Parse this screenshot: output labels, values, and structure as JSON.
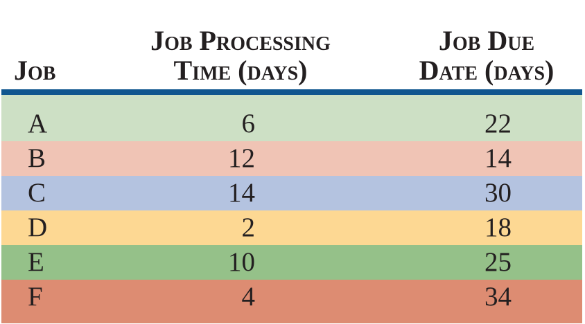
{
  "table": {
    "header": {
      "col_job": "Job",
      "col_processing_line1": "Job Processing",
      "col_processing_line2": "Time (days)",
      "col_due_line1": "Job Due",
      "col_due_line2": "Date (days)"
    },
    "rule_color": "#10568f",
    "text_color": "#231f20",
    "rows": [
      {
        "job": "A",
        "processing_time": "6",
        "due_date": "22",
        "color": "#cde0c5"
      },
      {
        "job": "B",
        "processing_time": "12",
        "due_date": "14",
        "color": "#f0c4b5"
      },
      {
        "job": "C",
        "processing_time": "14",
        "due_date": "30",
        "color": "#b4c3e0"
      },
      {
        "job": "D",
        "processing_time": "2",
        "due_date": "18",
        "color": "#fdd893"
      },
      {
        "job": "E",
        "processing_time": "10",
        "due_date": "25",
        "color": "#95c189"
      },
      {
        "job": "F",
        "processing_time": "4",
        "due_date": "34",
        "color": "#dd8c72"
      }
    ]
  },
  "chart_data": {
    "type": "table",
    "title": "",
    "columns": [
      "Job",
      "Job Processing Time (days)",
      "Job Due Date (days)"
    ],
    "rows": [
      [
        "A",
        6,
        22
      ],
      [
        "B",
        12,
        14
      ],
      [
        "C",
        14,
        30
      ],
      [
        "D",
        2,
        18
      ],
      [
        "E",
        10,
        25
      ],
      [
        "F",
        4,
        34
      ]
    ],
    "row_colors": [
      "#cde0c5",
      "#f0c4b5",
      "#b4c3e0",
      "#fdd893",
      "#95c189",
      "#dd8c72"
    ],
    "layout_hints": {
      "header_rule_color": "#10568f",
      "numbers_alignment": "right",
      "header_style": "bold small-caps serif"
    }
  }
}
